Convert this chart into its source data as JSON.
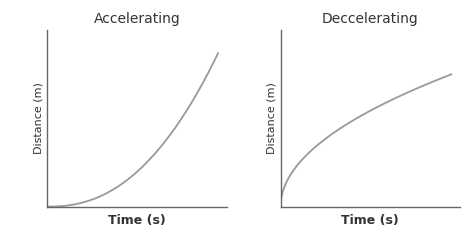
{
  "title_left": "Accelerating",
  "title_right": "Deccelerating",
  "xlabel": "Time (s)",
  "ylabel": "Distance (m)",
  "line_color": "#999999",
  "background_color": "#ffffff",
  "title_fontsize": 10,
  "xlabel_fontsize": 9,
  "ylabel_fontsize": 8,
  "line_width": 1.3,
  "fig_width": 4.74,
  "fig_height": 2.52,
  "dpi": 100
}
